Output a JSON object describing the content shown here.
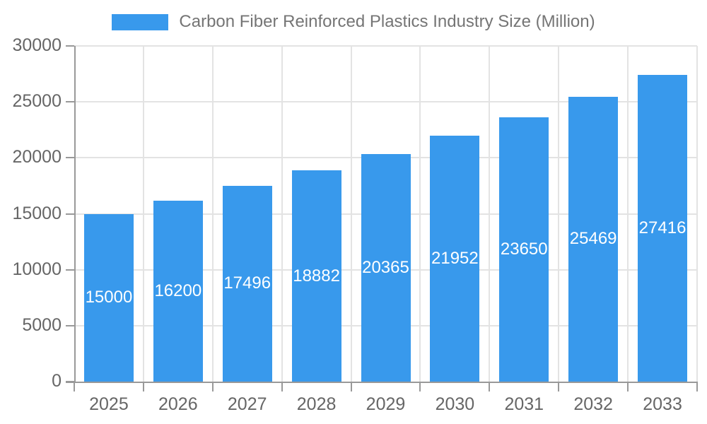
{
  "chart_data": {
    "type": "bar",
    "title": "Carbon Fiber Reinforced Plastics Industry Size (Million)",
    "legend": {
      "label": "Carbon Fiber Reinforced Plastics Industry Size (Million)",
      "position": "top"
    },
    "categories": [
      "2025",
      "2026",
      "2027",
      "2028",
      "2029",
      "2030",
      "2031",
      "2032",
      "2033"
    ],
    "values": [
      15000,
      16200,
      17496,
      18882,
      20365,
      21952,
      23650,
      25469,
      27416
    ],
    "series": [
      {
        "name": "Carbon Fiber Reinforced Plastics Industry Size (Million)",
        "values": [
          15000,
          16200,
          17496,
          18882,
          20365,
          21952,
          23650,
          25469,
          27416
        ]
      }
    ],
    "xlabel": "",
    "ylabel": "",
    "ylim": [
      0,
      30000
    ],
    "yticks": [
      0,
      5000,
      10000,
      15000,
      20000,
      25000,
      30000
    ],
    "grid": true,
    "bar_value_labels_visible": true,
    "colors": {
      "bar": "#3899EC",
      "grid": "#E3E3E3",
      "axis": "#999999",
      "tick_text": "#666666",
      "title_text": "#757575",
      "bar_label": "#FFFFFF",
      "background": "#FFFFFF"
    }
  }
}
